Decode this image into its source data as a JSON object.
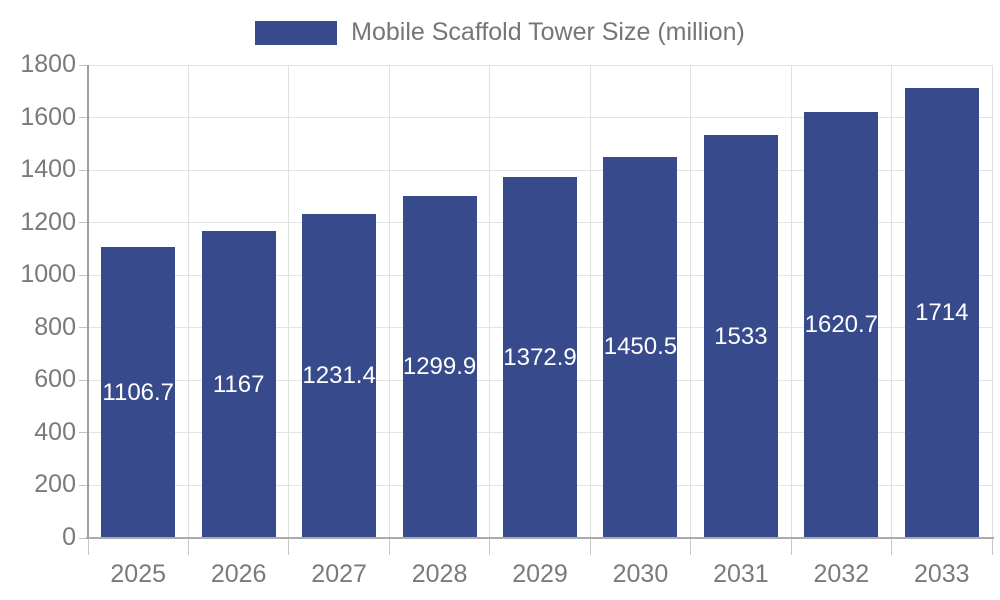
{
  "legend": {
    "label": "Mobile Scaffold Tower Size (million)"
  },
  "chart_data": {
    "type": "bar",
    "title": "Mobile Scaffold Tower Size (million)",
    "categories": [
      "2025",
      "2026",
      "2027",
      "2028",
      "2029",
      "2030",
      "2031",
      "2032",
      "2033"
    ],
    "values": [
      1106.7,
      1167,
      1231.4,
      1299.9,
      1372.9,
      1450.5,
      1533,
      1620.7,
      1714
    ],
    "value_labels": [
      "1106.7",
      "1167",
      "1231.4",
      "1299.9",
      "1372.9",
      "1450.5",
      "1533",
      "1620.7",
      "1714"
    ],
    "xlabel": "",
    "ylabel": "",
    "ylim": [
      0,
      1800
    ],
    "ytick_step": 200,
    "ytick_labels": [
      "0",
      "200",
      "400",
      "600",
      "800",
      "1000",
      "1200",
      "1400",
      "1600",
      "1800"
    ],
    "grid": true,
    "legend_position": "top-center",
    "bar_color": "#374B8C",
    "value_label_color": "#ffffff",
    "axis_text_color": "#7a7a7a"
  }
}
